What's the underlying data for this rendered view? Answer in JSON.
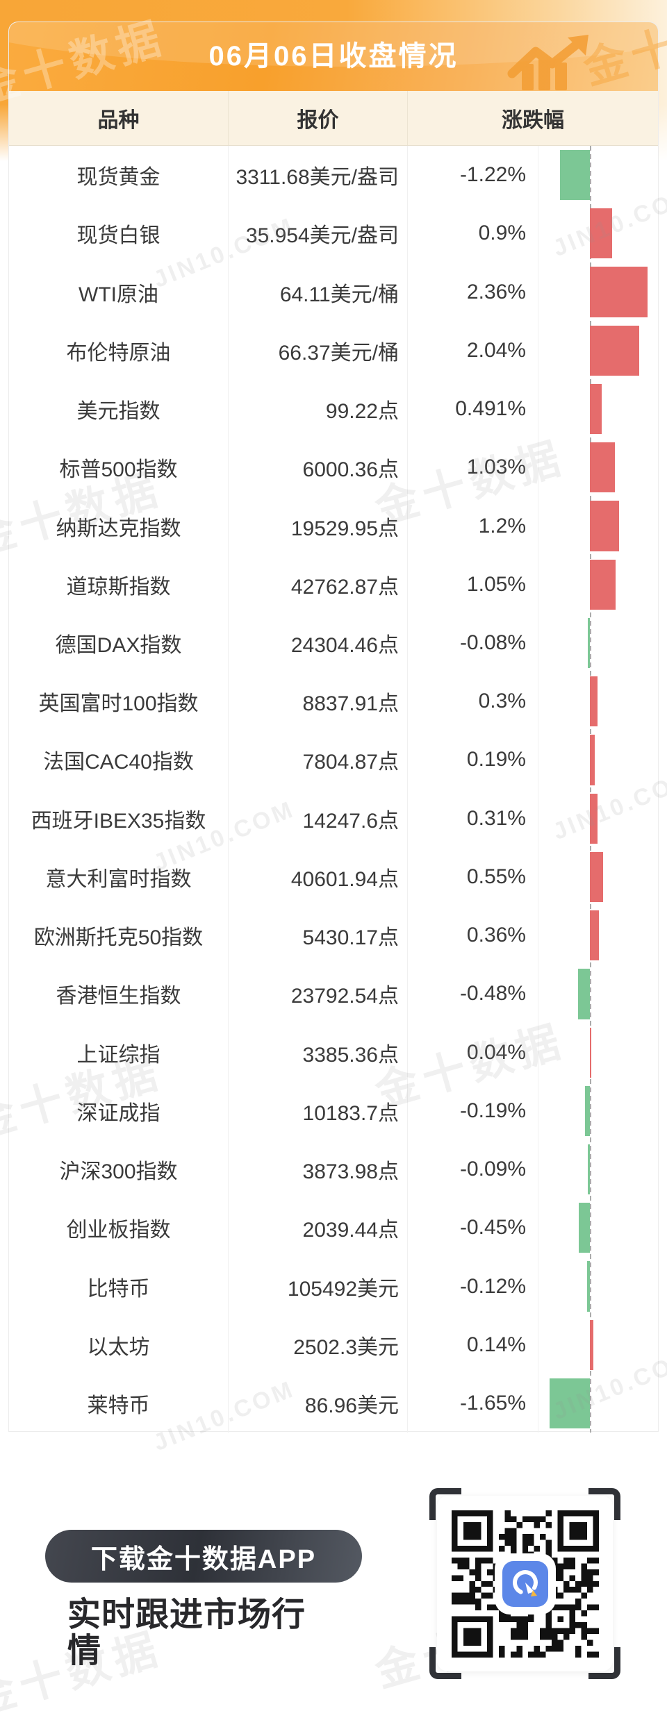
{
  "page": {
    "title": "06月06日收盘情况",
    "watermark_cn": "金十数据",
    "watermark_en": "JIN10.COM"
  },
  "table": {
    "headers": [
      "品种",
      "报价",
      "涨跌幅"
    ]
  },
  "footer": {
    "button_label": "下载金十数据APP",
    "headline": "实时跟进市场行情"
  },
  "colors": {
    "up_bar": "#e56c6c",
    "down_bar": "#7cc795",
    "header_orange": "#f8a42f",
    "header_cream": "#faf2e2",
    "qr_icon_blue": "#5c87e8",
    "button_dark": "#2e3138"
  },
  "chart_data": {
    "type": "table",
    "title": "06月06日收盘情况",
    "columns": [
      "品种",
      "报价",
      "涨跌幅"
    ],
    "bar_unit": "%",
    "bar_positive_color": "#e56c6c",
    "bar_negative_color": "#7cc795",
    "rows": [
      {
        "name": "现货黄金",
        "quote": "3311.68美元/盎司",
        "change": "-1.22%",
        "pct": -1.22
      },
      {
        "name": "现货白银",
        "quote": "35.954美元/盎司",
        "change": "0.9%",
        "pct": 0.9
      },
      {
        "name": "WTI原油",
        "quote": "64.11美元/桶",
        "change": "2.36%",
        "pct": 2.36
      },
      {
        "name": "布伦特原油",
        "quote": "66.37美元/桶",
        "change": "2.04%",
        "pct": 2.04
      },
      {
        "name": "美元指数",
        "quote": "99.22点",
        "change": "0.491%",
        "pct": 0.491
      },
      {
        "name": "标普500指数",
        "quote": "6000.36点",
        "change": "1.03%",
        "pct": 1.03
      },
      {
        "name": "纳斯达克指数",
        "quote": "19529.95点",
        "change": "1.2%",
        "pct": 1.2
      },
      {
        "name": "道琼斯指数",
        "quote": "42762.87点",
        "change": "1.05%",
        "pct": 1.05
      },
      {
        "name": "德国DAX指数",
        "quote": "24304.46点",
        "change": "-0.08%",
        "pct": -0.08
      },
      {
        "name": "英国富时100指数",
        "quote": "8837.91点",
        "change": "0.3%",
        "pct": 0.3
      },
      {
        "name": "法国CAC40指数",
        "quote": "7804.87点",
        "change": "0.19%",
        "pct": 0.19
      },
      {
        "name": "西班牙IBEX35指数",
        "quote": "14247.6点",
        "change": "0.31%",
        "pct": 0.31
      },
      {
        "name": "意大利富时指数",
        "quote": "40601.94点",
        "change": "0.55%",
        "pct": 0.55
      },
      {
        "name": "欧洲斯托克50指数",
        "quote": "5430.17点",
        "change": "0.36%",
        "pct": 0.36
      },
      {
        "name": "香港恒生指数",
        "quote": "23792.54点",
        "change": "-0.48%",
        "pct": -0.48
      },
      {
        "name": "上证综指",
        "quote": "3385.36点",
        "change": "0.04%",
        "pct": 0.04
      },
      {
        "name": "深证成指",
        "quote": "10183.7点",
        "change": "-0.19%",
        "pct": -0.19
      },
      {
        "name": "沪深300指数",
        "quote": "3873.98点",
        "change": "-0.09%",
        "pct": -0.09
      },
      {
        "name": "创业板指数",
        "quote": "2039.44点",
        "change": "-0.45%",
        "pct": -0.45
      },
      {
        "name": "比特币",
        "quote": "105492美元",
        "change": "-0.12%",
        "pct": -0.12
      },
      {
        "name": "以太坊",
        "quote": "2502.3美元",
        "change": "0.14%",
        "pct": 0.14
      },
      {
        "name": "莱特币",
        "quote": "86.96美元",
        "change": "-1.65%",
        "pct": -1.65
      }
    ]
  }
}
